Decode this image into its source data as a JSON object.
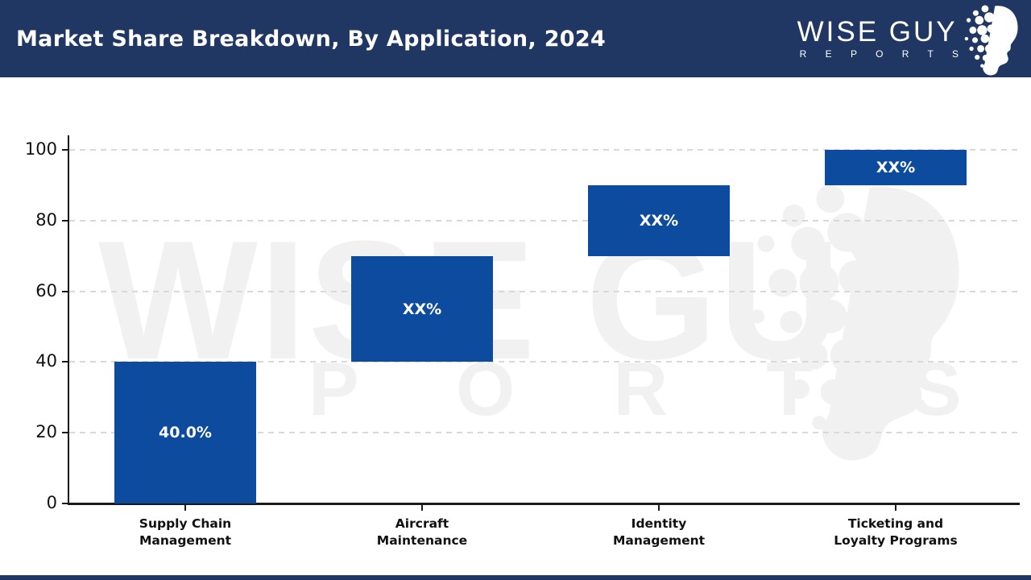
{
  "header": {
    "title": "Market Share Breakdown, By Application, 2024",
    "logo": {
      "brand_line1": "WISE GUY",
      "brand_line2": "R E P O R T S"
    }
  },
  "watermark": {
    "line1": "WISE GUY",
    "line2": "P O R T S"
  },
  "chart_data": {
    "type": "bar",
    "subtype": "waterfall",
    "title": "Market Share Breakdown, By Application, 2024",
    "categories": [
      "Supply Chain\nManagement",
      "Aircraft\nMaintenance",
      "Identity\nManagement",
      "Ticketing and\nLoyalty Programs"
    ],
    "series": [
      {
        "name": "Market Share",
        "bars": [
          {
            "category": "Supply Chain Management",
            "label": "40.0%",
            "start": 0,
            "end": 40,
            "value": 40
          },
          {
            "category": "Aircraft Maintenance",
            "label": "XX%",
            "start": 40,
            "end": 70,
            "value": 30
          },
          {
            "category": "Identity Management",
            "label": "XX%",
            "start": 70,
            "end": 90,
            "value": 20
          },
          {
            "category": "Ticketing and Loyalty Programs",
            "label": "XX%",
            "start": 90,
            "end": 100,
            "value": 10
          }
        ]
      }
    ],
    "xlabel": "",
    "ylabel": "",
    "ylim": [
      0,
      100
    ],
    "y_ticks": [
      0,
      20,
      40,
      60,
      80,
      100
    ],
    "grid": "horizontal-dashed",
    "legend": "none",
    "bar_color": "#0c4b9e",
    "bar_label_color": "#ffffff"
  },
  "colors": {
    "header_bg": "#213763",
    "footer_bg": "#213763",
    "bar": "#0c4b9e",
    "axis": "#1a1a1a",
    "grid": "#d9d9d9",
    "watermark": "#f1f1f1"
  }
}
